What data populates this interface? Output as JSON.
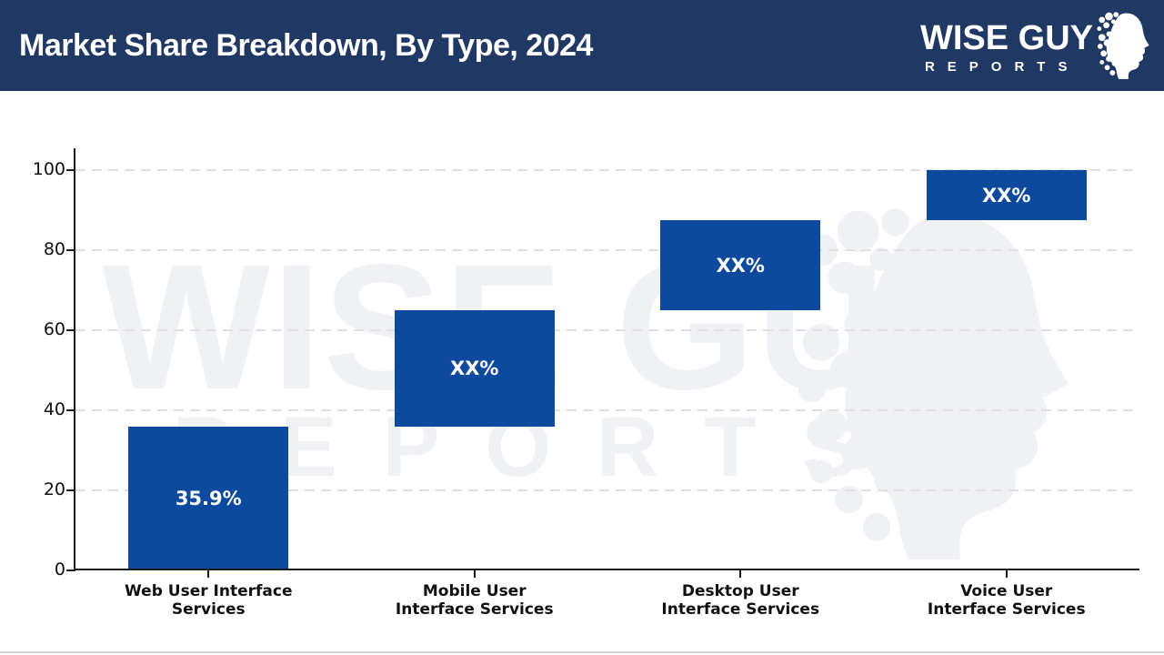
{
  "header": {
    "title": "Market Share Breakdown, By Type, 2024",
    "logo": {
      "line1": "WISE GUY",
      "line2": "REPORTS"
    }
  },
  "watermark": {
    "line1": "WISE GUY",
    "line2": "REPORTS"
  },
  "colors": {
    "header_bg": "#1f3864",
    "bar": "#0d4a9e",
    "bar_label": "#ffffff",
    "watermark": "#f0f1f4",
    "grid": "#e0e0e0",
    "axis": "#1a1a1a",
    "text": "#111111"
  },
  "chart_data": {
    "type": "bar",
    "subtype": "waterfall",
    "title": "Market Share Breakdown, By Type, 2024",
    "xlabel": "",
    "ylabel": "",
    "ylim": [
      0,
      100
    ],
    "yticks": [
      0,
      20,
      40,
      60,
      80,
      100
    ],
    "grid": "horizontal-dashed",
    "legend": "none",
    "categories": [
      "Web User Interface Services",
      "Mobile User Interface Services",
      "Desktop User Interface Services",
      "Voice User Interface Services"
    ],
    "category_label_lines": [
      [
        "Web User Interface",
        "Services"
      ],
      [
        "Mobile User",
        "Interface Services"
      ],
      [
        "Desktop User",
        "Interface Services"
      ],
      [
        "Voice User",
        "Interface Services"
      ]
    ],
    "segments": [
      {
        "category": "Web User Interface Services",
        "start": 0,
        "end": 35.9,
        "label": "35.9%"
      },
      {
        "category": "Mobile User Interface Services",
        "start": 35.9,
        "end": 65,
        "label": "XX%"
      },
      {
        "category": "Desktop User Interface Services",
        "start": 65,
        "end": 87.5,
        "label": "XX%"
      },
      {
        "category": "Voice User Interface Services",
        "start": 87.5,
        "end": 100,
        "label": "XX%"
      }
    ]
  }
}
